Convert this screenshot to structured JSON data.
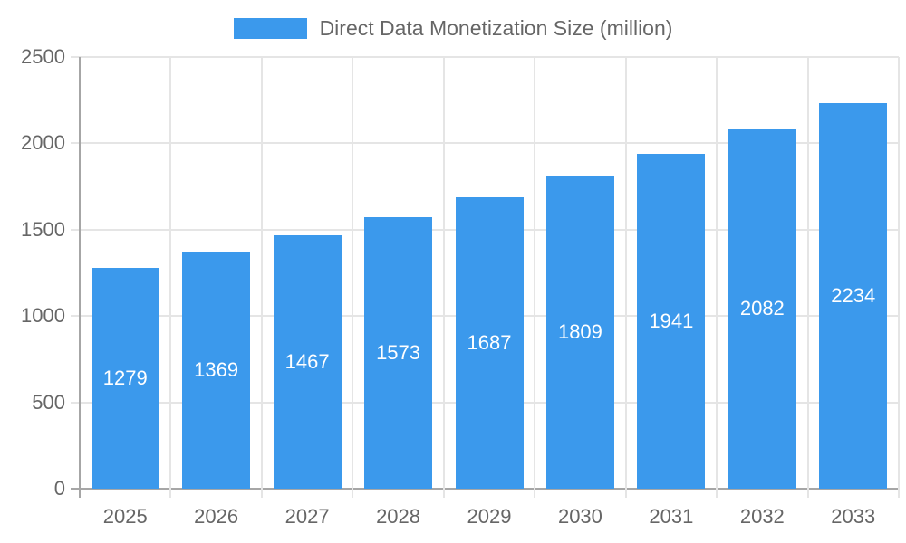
{
  "legend": {
    "label": "Direct Data Monetization Size (million)",
    "swatch_color": "#3b99ec"
  },
  "chart_data": {
    "type": "bar",
    "title": "Direct Data Monetization Size (million)",
    "categories": [
      "2025",
      "2026",
      "2027",
      "2028",
      "2029",
      "2030",
      "2031",
      "2032",
      "2033"
    ],
    "values": [
      1279,
      1369,
      1467,
      1573,
      1687,
      1809,
      1941,
      2082,
      2234
    ],
    "xlabel": "",
    "ylabel": "",
    "ylim": [
      0,
      2500
    ],
    "yticks": [
      0,
      500,
      1000,
      1500,
      2000,
      2500
    ],
    "grid": true,
    "legend_position": "top",
    "bar_color": "#3b99ec",
    "bar_label_color": "#ffffff",
    "axis_text_color": "#666666",
    "grid_color": "#e5e5e5",
    "axis_line_color": "#a6a6a6"
  }
}
